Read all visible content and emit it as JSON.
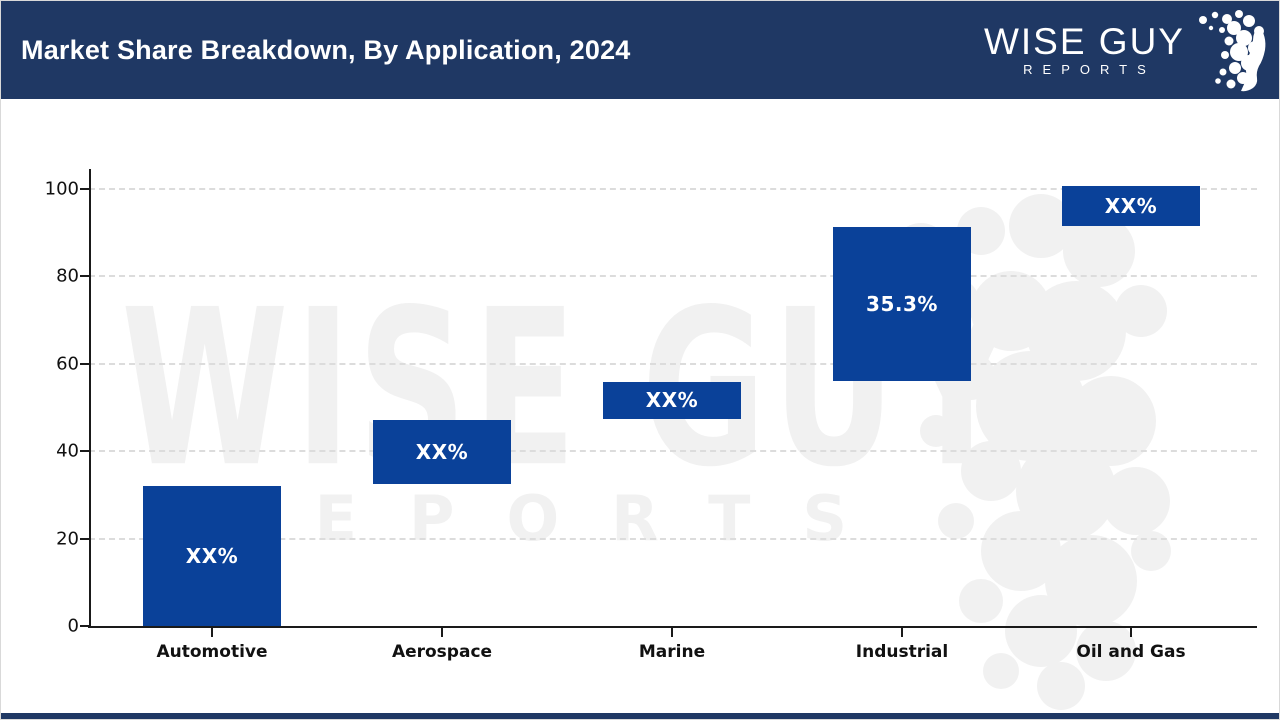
{
  "header": {
    "title": "Market Share Breakdown, By Application, 2024",
    "logo": {
      "line1": "WISE GUY",
      "line2": "REPORTS"
    }
  },
  "watermark": {
    "line1": "WISE GUY",
    "line2": "REPORTS"
  },
  "chart_data": {
    "type": "bar",
    "subtype": "floating-waterfall",
    "title": "Market Share Breakdown, By Application, 2024",
    "categories": [
      "Automotive",
      "Aerospace",
      "Marine",
      "Industrial",
      "Oil and Gas"
    ],
    "bars": [
      {
        "category": "Automotive",
        "start": 0,
        "end": 32,
        "label": "XX%"
      },
      {
        "category": "Aerospace",
        "start": 32.4,
        "end": 47,
        "label": "XX%"
      },
      {
        "category": "Marine",
        "start": 47.3,
        "end": 55.8,
        "label": "XX%"
      },
      {
        "category": "Industrial",
        "start": 56,
        "end": 91.3,
        "label": "35.3%"
      },
      {
        "category": "Oil and Gas",
        "start": 91.4,
        "end": 100.6,
        "label": "XX%"
      }
    ],
    "y_ticks": [
      0,
      20,
      40,
      60,
      80,
      100
    ],
    "ylim": [
      0,
      104
    ],
    "xlabel": "",
    "ylabel": "",
    "grid": "horizontal-dashed",
    "legend": "none"
  },
  "colors": {
    "header_bg": "#1f3864",
    "footer_bg": "#1f3864",
    "bar": "#0a4199",
    "bar_label": "#ffffff",
    "grid": "#dcdcdc",
    "axis": "#1a1a1a",
    "tick_text": "#111111",
    "title_text": "#ffffff",
    "watermark": "#f1f1f1",
    "page_bg": "#ffffff"
  }
}
